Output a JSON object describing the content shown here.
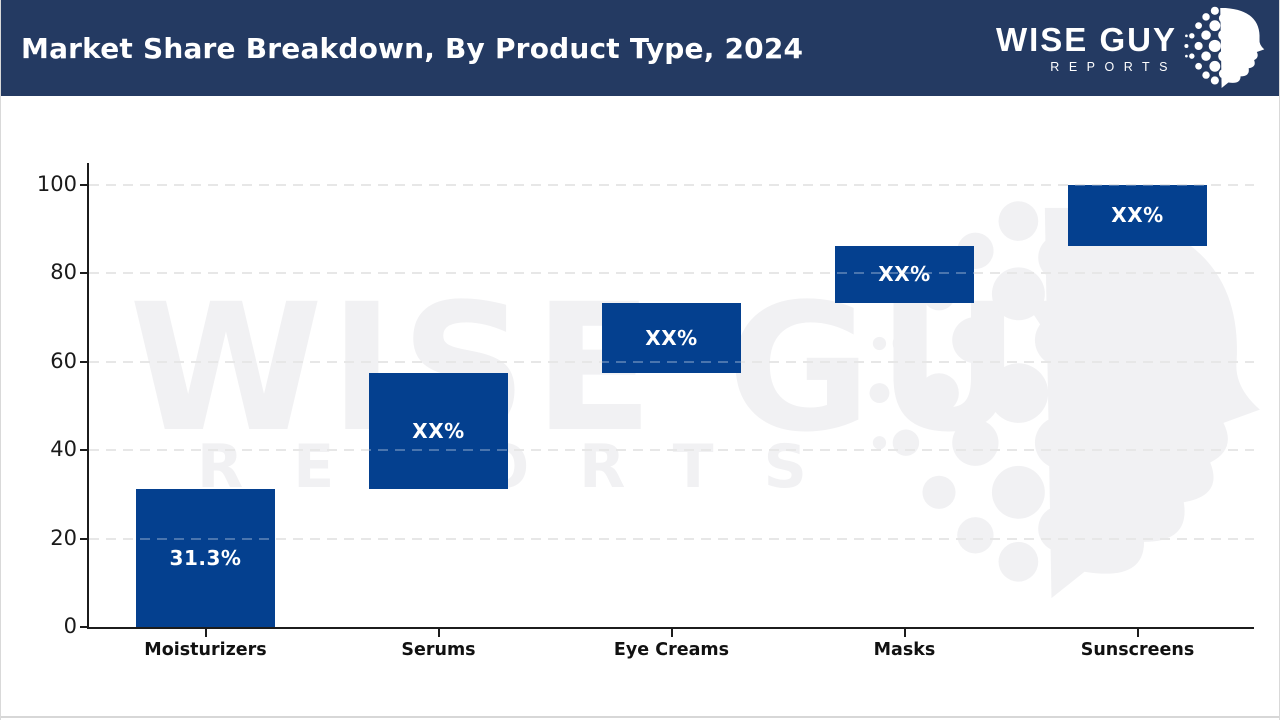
{
  "header": {
    "title": "Market Share Breakdown, By Product Type, 2024",
    "logo_line1": "WISE GUY",
    "logo_line2": "REPORTS"
  },
  "watermark": {
    "line1": "WISE GUY",
    "line2": "REPORTS"
  },
  "colors": {
    "header_bg": "#243a62",
    "bar": "#04408F",
    "bar_label": "#ffffff",
    "grid": "#dedede",
    "watermark": "#f1f1f3"
  },
  "chart_data": {
    "type": "bar",
    "subtype": "waterfall",
    "title": "Market Share Breakdown, By Product Type, 2024",
    "categories": [
      "Moisturizers",
      "Serums",
      "Eye Creams",
      "Masks",
      "Sunscreens"
    ],
    "segments": [
      {
        "category": "Moisturizers",
        "start": 0,
        "end": 31.3,
        "label": "31.3%"
      },
      {
        "category": "Serums",
        "start": 31.3,
        "end": 57.5,
        "label": "XX%"
      },
      {
        "category": "Eye Creams",
        "start": 57.5,
        "end": 73.4,
        "label": "XX%"
      },
      {
        "category": "Masks",
        "start": 73.4,
        "end": 86.2,
        "label": "XX%"
      },
      {
        "category": "Sunscreens",
        "start": 86.2,
        "end": 100,
        "label": "XX%"
      }
    ],
    "yticks": [
      0,
      20,
      40,
      60,
      80,
      100
    ],
    "ylim": [
      0,
      105
    ],
    "grid": "horizontal-dashed",
    "legend": "none",
    "unit": "percent"
  }
}
